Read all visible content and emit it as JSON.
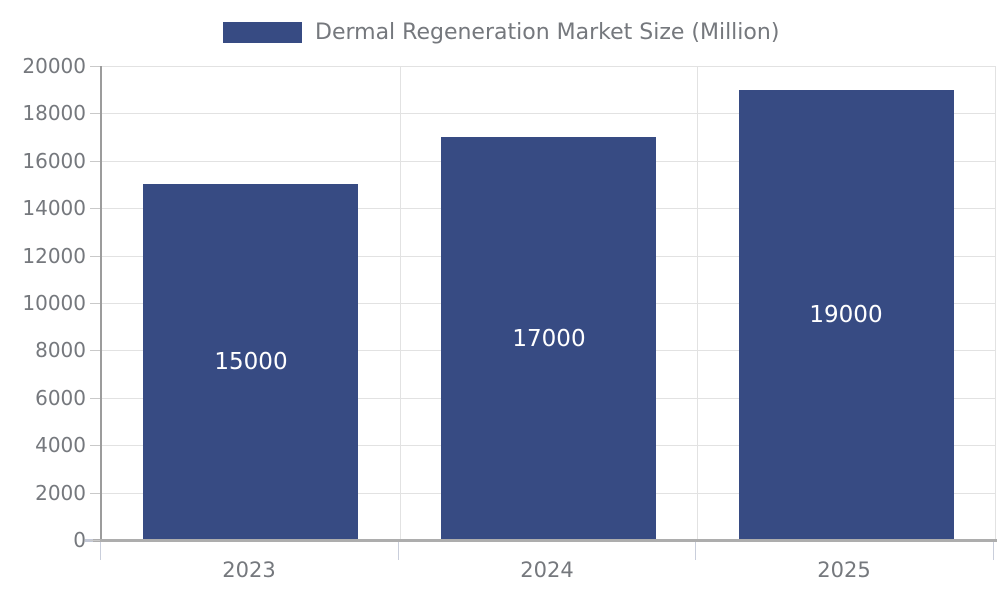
{
  "chart_data": {
    "type": "bar",
    "title": "",
    "legend": {
      "label": "Dermal Regeneration Market Size (Million)",
      "position": "top-center"
    },
    "categories": [
      "2023",
      "2024",
      "2025"
    ],
    "series": [
      {
        "name": "Dermal Regeneration Market Size (Million)",
        "values": [
          15000,
          17000,
          19000
        ]
      }
    ],
    "value_labels": [
      "15000",
      "17000",
      "19000"
    ],
    "xlabel": "",
    "ylabel": "",
    "ylim": [
      0,
      20000
    ],
    "ytick_interval": 2000,
    "ytick_labels": [
      "0",
      "2000",
      "4000",
      "6000",
      "8000",
      "10000",
      "12000",
      "14000",
      "16000",
      "18000",
      "20000"
    ],
    "grid": true,
    "colors": {
      "bar": "#374B83",
      "bar_label_text": "#FFFFFF",
      "axis_text": "#75787D",
      "legend_text": "#75787D",
      "gridline": "#E2E2E2",
      "y_axis_spine": "#9C9C9C",
      "x_axis_line": "#ADADAD",
      "background": "#FFFFFF"
    }
  }
}
